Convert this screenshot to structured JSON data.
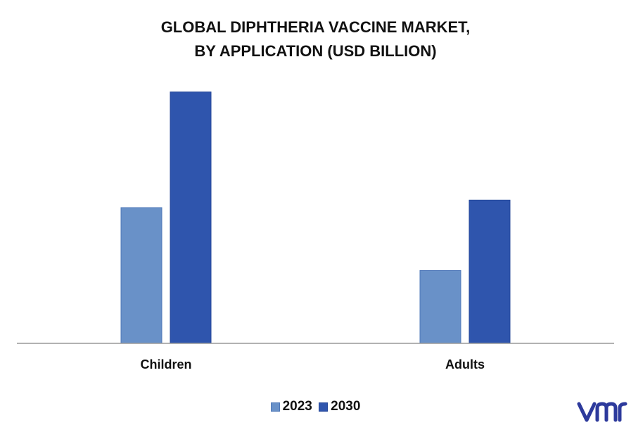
{
  "title_lines": [
    "GLOBAL DIPHTHERIA VACCINE MARKET,",
    "BY APPLICATION (USD BILLION)"
  ],
  "colors": {
    "s2023": "#6991c8",
    "s2030": "#2f55ad",
    "axis": "#999999",
    "logo": "#2d3a9c"
  },
  "logo_icon": "vmr-logo",
  "chart_data": {
    "type": "bar",
    "title": "GLOBAL DIPHTHERIA VACCINE MARKET, BY APPLICATION (USD BILLION)",
    "categories": [
      "Children",
      "Adults"
    ],
    "series": [
      {
        "name": "2023",
        "values": [
          0.54,
          0.29
        ]
      },
      {
        "name": "2030",
        "values": [
          1.0,
          0.57
        ]
      }
    ],
    "ylim": [
      0,
      1.1
    ],
    "legend": "bottom",
    "grid": false
  }
}
